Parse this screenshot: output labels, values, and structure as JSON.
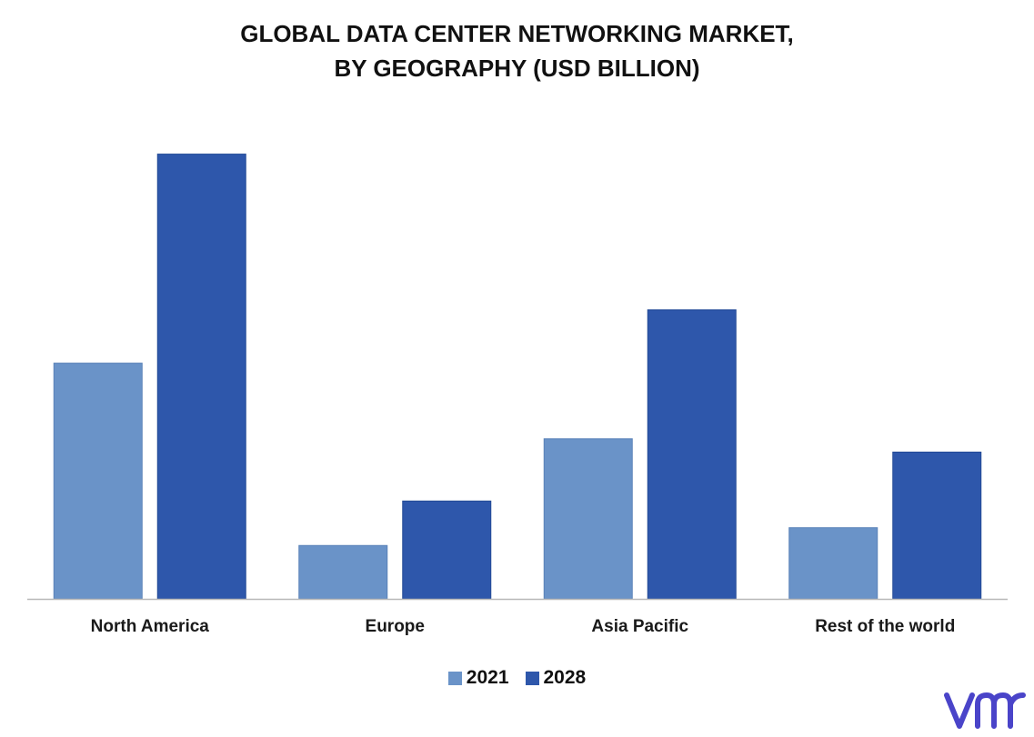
{
  "chart_data": {
    "type": "bar",
    "title_line1": "GLOBAL DATA CENTER NETWORKING MARKET,",
    "title_line2": "BY GEOGRAPHY (USD BILLION)",
    "categories": [
      "North America",
      "Europe",
      "Asia Pacific",
      "Rest of the world"
    ],
    "series": [
      {
        "name": "2021",
        "color": "#6a93c8",
        "values": [
          5.3,
          1.2,
          3.6,
          1.6
        ]
      },
      {
        "name": "2028",
        "color": "#2e57ab",
        "values": [
          10.0,
          2.2,
          6.5,
          3.3
        ]
      }
    ],
    "xlabel": "",
    "ylabel": "",
    "ylim": [
      0,
      10.4
    ],
    "grid": false,
    "legend_position": "bottom"
  },
  "brand": {
    "logo_color": "#4a44c9"
  }
}
